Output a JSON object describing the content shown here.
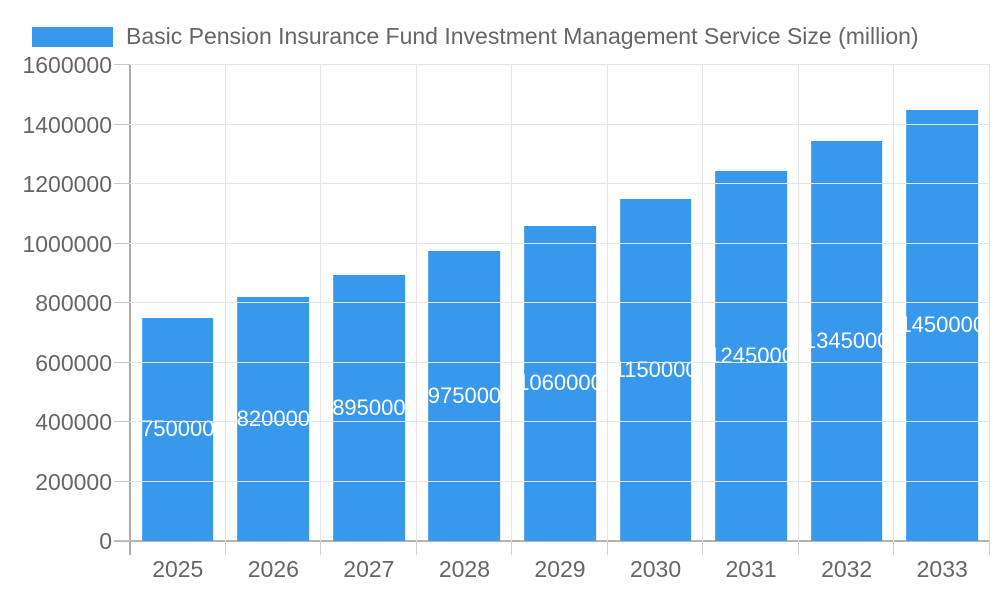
{
  "title": "Basic Pension Insurance Fund Investment Management Service Size (million)",
  "legend": {
    "label": "Basic Pension Insurance Fund Investment Management Service Size (million)",
    "swatch_color": "#3899ec"
  },
  "colors": {
    "bar": "#3899ec",
    "text": "#666666",
    "gridline": "#e5e5e5",
    "axis_line": "#b3b3b3",
    "bar_label": "#ffffff",
    "background": "#ffffff"
  },
  "chart_data": {
    "type": "bar",
    "title": "Basic Pension Insurance Fund Investment Management Service Size (million)",
    "categories": [
      "2025",
      "2026",
      "2027",
      "2028",
      "2029",
      "2030",
      "2031",
      "2032",
      "2033"
    ],
    "values": [
      750000,
      820000,
      895000,
      975000,
      1060000,
      1150000,
      1245000,
      1345000,
      1450000
    ],
    "bar_labels": [
      "750000",
      "820000",
      "895000",
      "975000",
      "1060000",
      "1150000",
      "1245000",
      "1345000",
      "1450000"
    ],
    "xlabel": "",
    "ylabel": "",
    "ylim": [
      0,
      1600000
    ],
    "yticks": [
      0,
      200000,
      400000,
      600000,
      800000,
      1000000,
      1200000,
      1400000,
      1600000
    ],
    "grid": true,
    "legend_position": "top-left",
    "bar_label_position": "center"
  }
}
